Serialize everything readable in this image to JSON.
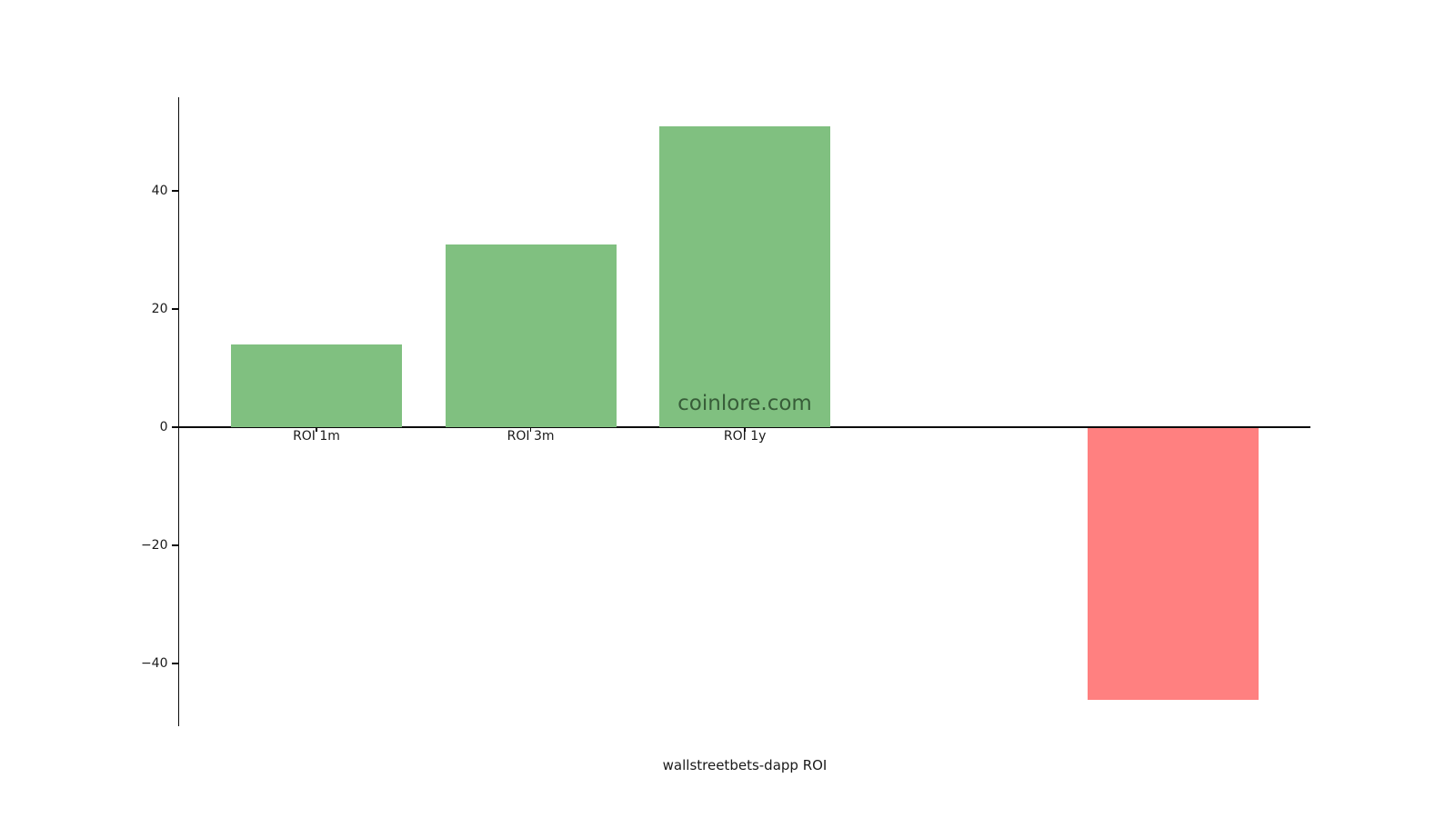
{
  "page": {
    "background_color": "#ffffff"
  },
  "chart_data": {
    "type": "bar",
    "title": "wallstreetbets-dapp ROI",
    "watermark": "coinlore.com",
    "categories": [
      "ROI 1m",
      "ROI 3m",
      "ROI 1y",
      ""
    ],
    "values": [
      14,
      31,
      51,
      -46
    ],
    "positions": [
      0,
      1,
      2,
      4
    ],
    "bar_colors": [
      "#80c080",
      "#80c080",
      "#80c080",
      "#ff8080"
    ],
    "positive_color": "#80c080",
    "negative_color": "#ff8080",
    "axis_color": "#0a0a0a",
    "text_color": "#1a1a1a",
    "yticks": {
      "values": [
        40,
        20,
        0,
        -20,
        -40
      ],
      "labels": [
        "40",
        "20",
        "0",
        "−20",
        "−40"
      ]
    },
    "ylim": [
      -51,
      56
    ],
    "xlabel": "",
    "ylabel": "",
    "grid": false,
    "legend": null
  }
}
